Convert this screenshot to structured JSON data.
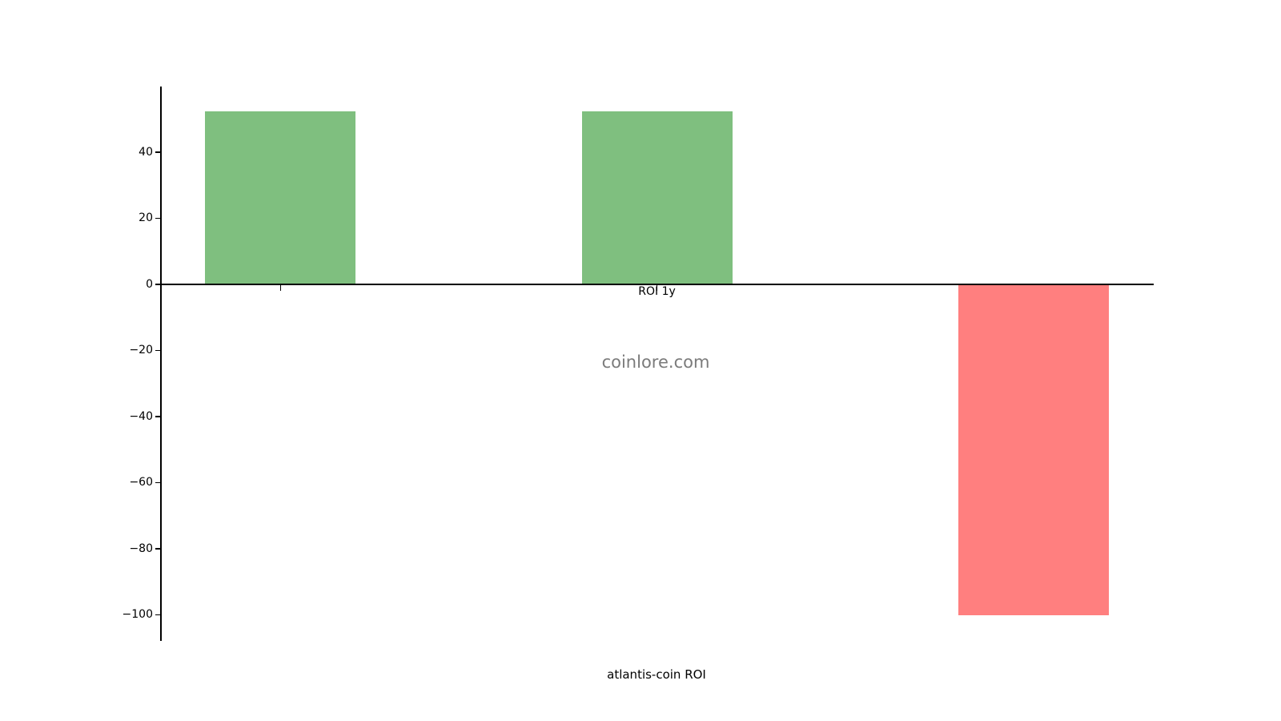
{
  "chart": {
    "watermark": "coinlore.com",
    "background_color": "#ffffff",
    "axis_color": "#000000",
    "watermark_color": "#7b7b7b"
  },
  "chart_data": {
    "type": "bar",
    "title": "",
    "xlabel": "atlantis-coin ROI",
    "ylabel": "",
    "categories": [
      "",
      "ROI 1y",
      ""
    ],
    "values": [
      52.4,
      52.4,
      -100
    ],
    "bar_colors": [
      "#7fbf7f",
      "#7fbf7f",
      "#ff7f7f"
    ],
    "positive_color": "#7fbf7f",
    "negative_color": "#ff7f7f",
    "y_ticks": [
      {
        "value": 40,
        "label": "40"
      },
      {
        "value": 20,
        "label": "20"
      },
      {
        "value": 0,
        "label": "0"
      },
      {
        "value": -20,
        "label": "−20"
      },
      {
        "value": -40,
        "label": "−40"
      },
      {
        "value": -60,
        "label": "−60"
      },
      {
        "value": -80,
        "label": "−80"
      },
      {
        "value": -100,
        "label": "−100"
      }
    ],
    "ylim": [
      -107.6,
      60
    ],
    "grid": false,
    "legend_position": "none",
    "annotations": [
      "coinlore.com"
    ]
  }
}
